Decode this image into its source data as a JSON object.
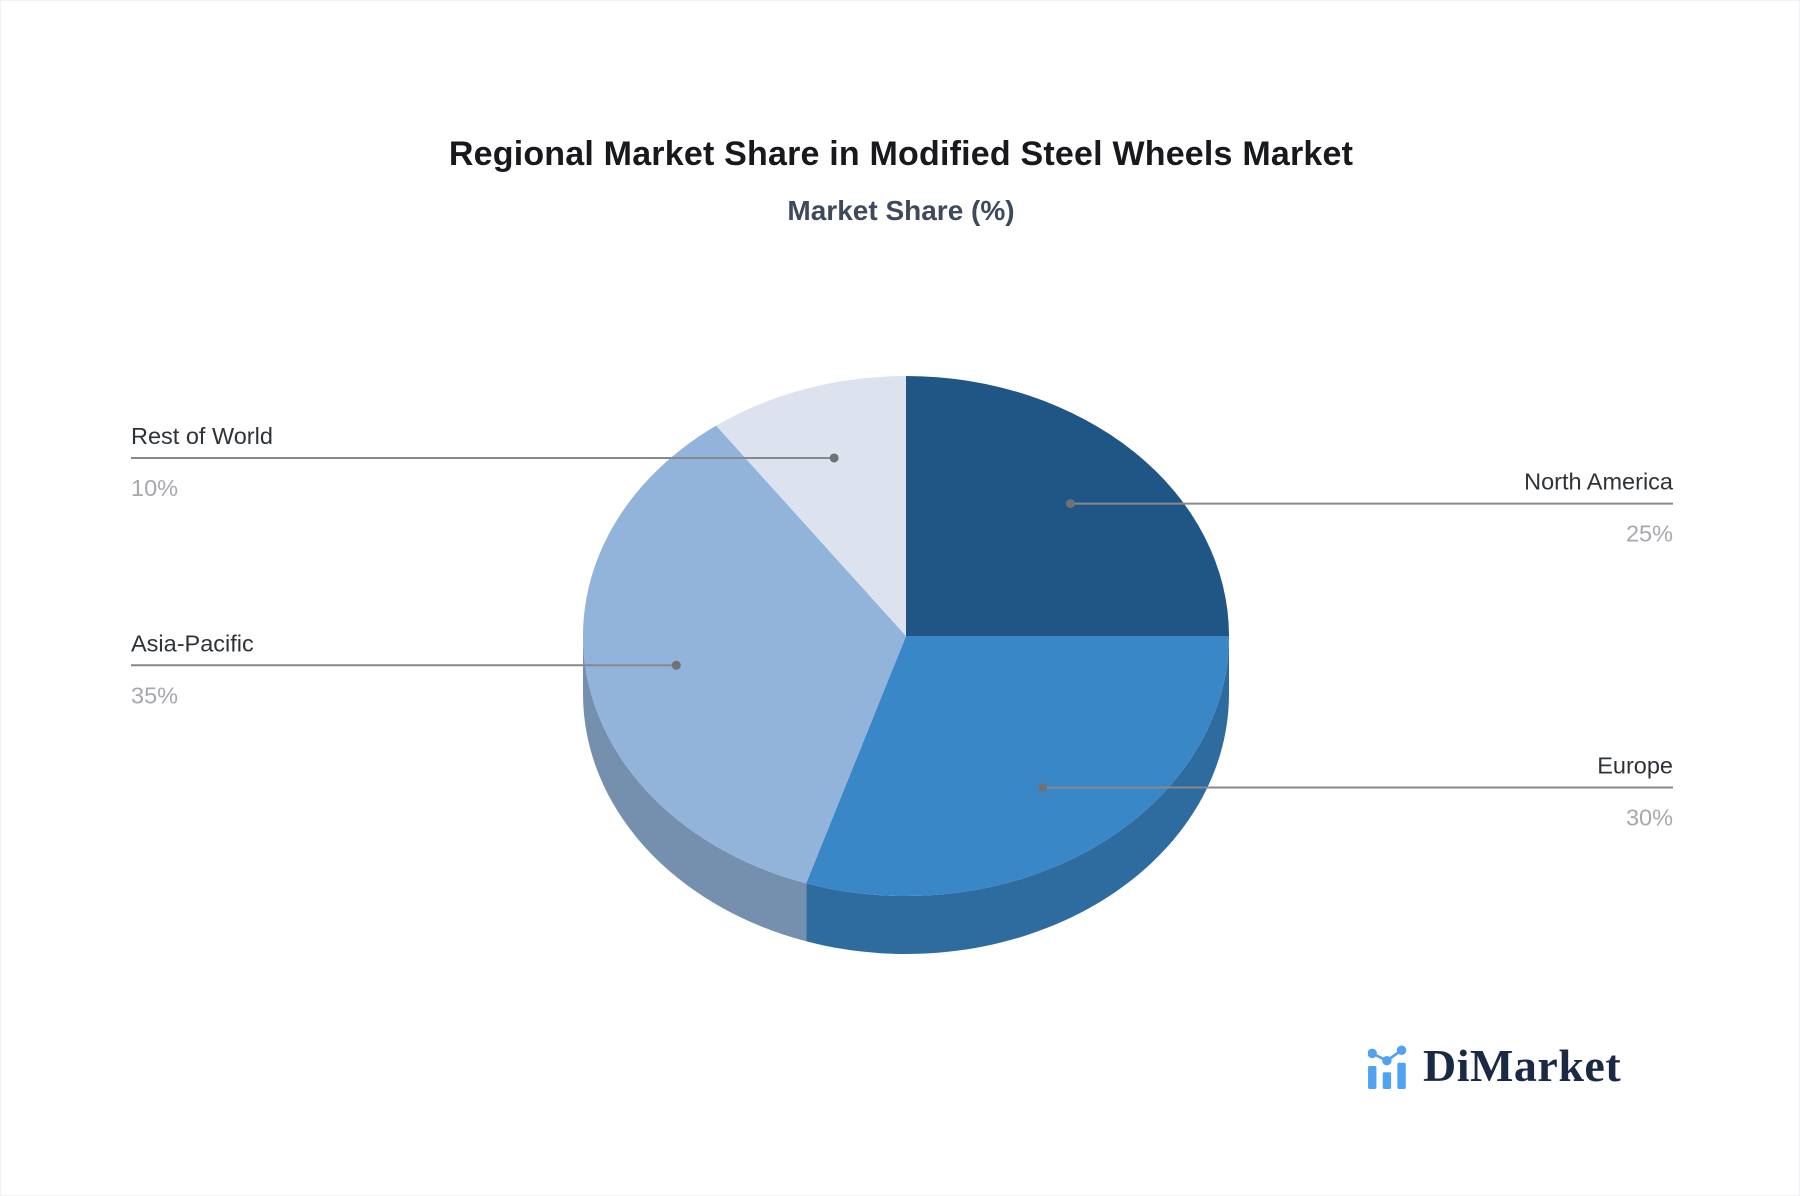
{
  "chart_data": {
    "type": "pie",
    "title": "Regional Market Share in Modified Steel Wheels Market",
    "subtitle": "Market Share (%)",
    "unit": "%",
    "start_angle_deg": 0,
    "direction": "clockwise",
    "effect_3d": true,
    "legend_position": "none",
    "slices": [
      {
        "label": "North America",
        "value": 25,
        "display": "25%",
        "color": "#205686"
      },
      {
        "label": "Europe",
        "value": 30,
        "display": "30%",
        "color": "#3A87C8"
      },
      {
        "label": "Asia-Pacific",
        "value": 35,
        "display": "35%",
        "color": "#92B3DA"
      },
      {
        "label": "Rest of World",
        "value": 10,
        "display": "10%",
        "color": "#DCE3EF"
      }
    ],
    "label_text_color": "#2E3338",
    "value_text_color": "#A5A8AC",
    "leader_line_color": "#87898C",
    "leader_dot_color": "#6F7275"
  },
  "branding": {
    "logo_text": "DiMarket",
    "logo_icon": "bar-chart-icon",
    "logo_text_color": "#1B2A44",
    "logo_accent_color": "#4FA3F2"
  }
}
